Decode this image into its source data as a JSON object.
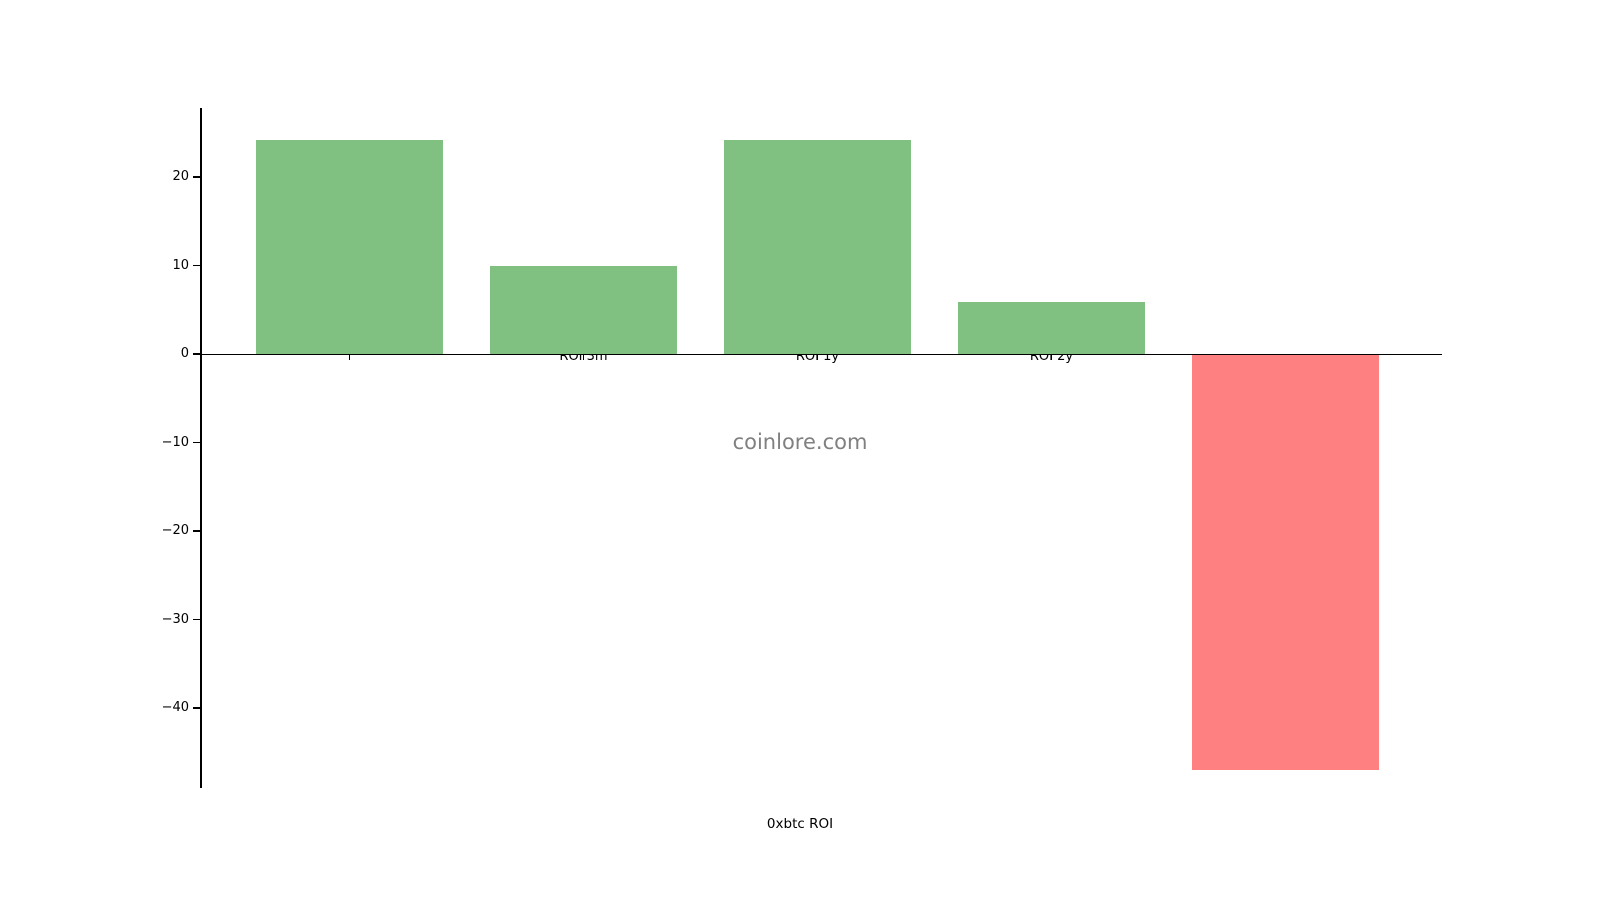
{
  "page": {
    "background_color": "#ffffff"
  },
  "chart_data": {
    "type": "bar",
    "title": "0xbtc ROI",
    "xlabel": "0xbtc ROI",
    "ylabel": "",
    "watermark": "coinlore.com",
    "categories": [
      "",
      "ROI 3m",
      "ROI 1y",
      "ROI 2y",
      ""
    ],
    "values": [
      24.2,
      10,
      24.2,
      5.9,
      -46.9
    ],
    "bar_colors": [
      "#80c080",
      "#80c080",
      "#80c080",
      "#80c080",
      "#ff8080"
    ],
    "positive_color": "#80c080",
    "negative_color": "#ff8080",
    "xtick_marks_visible": [
      true,
      true,
      true,
      true,
      false
    ],
    "ytick_values": [
      20,
      10,
      0,
      -10,
      -20,
      -30,
      -40
    ],
    "ytick_labels": [
      "20",
      "10",
      "0",
      "−10",
      "−20",
      "−30",
      "−40"
    ],
    "ylim": [
      -49,
      28
    ],
    "grid": false,
    "legend": false,
    "axis_color": "#000000",
    "watermark_color": "#808080"
  }
}
